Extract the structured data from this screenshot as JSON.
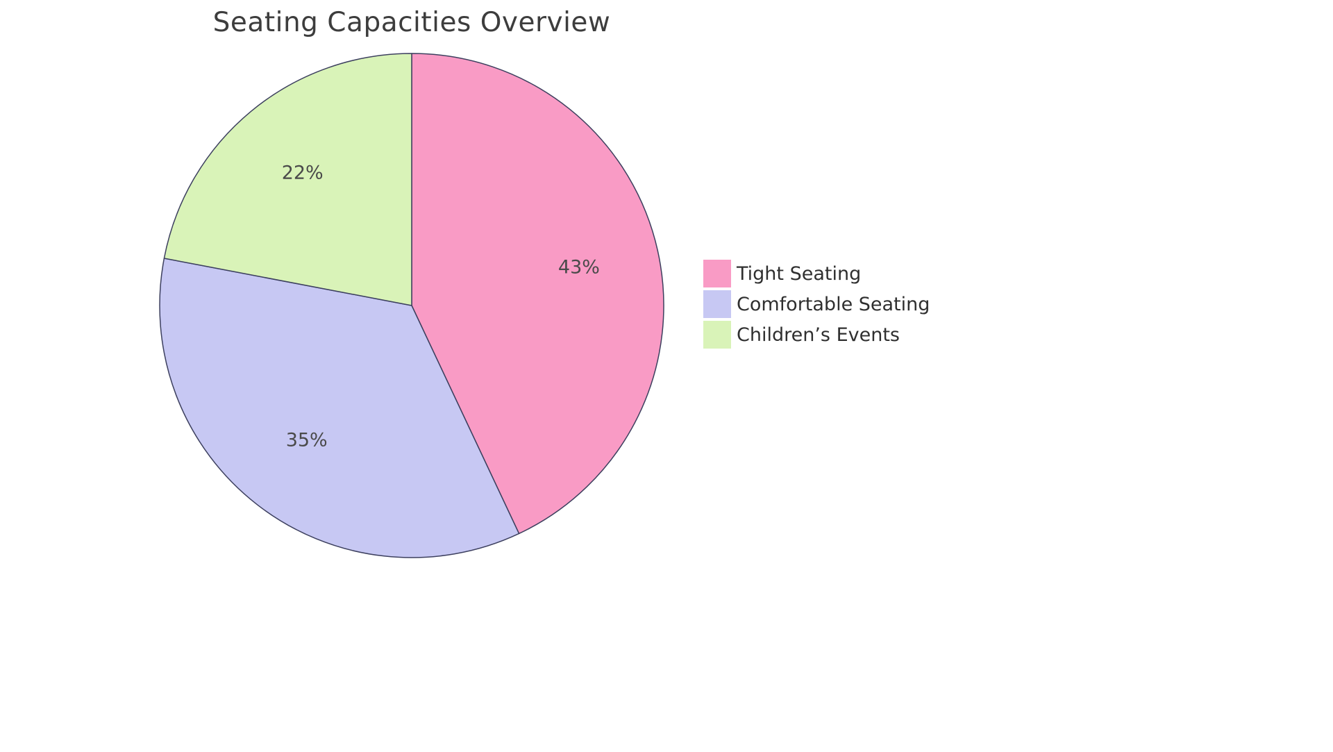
{
  "chart_data": {
    "type": "pie",
    "title": "Seating Capacities Overview",
    "categories": [
      "Tight Seating",
      "Comfortable Seating",
      "Children’s Events"
    ],
    "values": [
      43,
      35,
      22
    ],
    "slices": [
      {
        "label": "Tight Seating",
        "value": 43,
        "pct_label": "43%",
        "color": "#F99BC5"
      },
      {
        "label": "Comfortable Seating",
        "value": 35,
        "pct_label": "35%",
        "color": "#C7C8F3"
      },
      {
        "label": "Children’s Events",
        "value": 22,
        "pct_label": "22%",
        "color": "#D9F3B8"
      }
    ],
    "start_angle": "top",
    "direction": "clockwise",
    "stroke_color": "#3c3f5e",
    "label_color": "#4a4a4a",
    "legend_position": "right",
    "grid": "off"
  }
}
